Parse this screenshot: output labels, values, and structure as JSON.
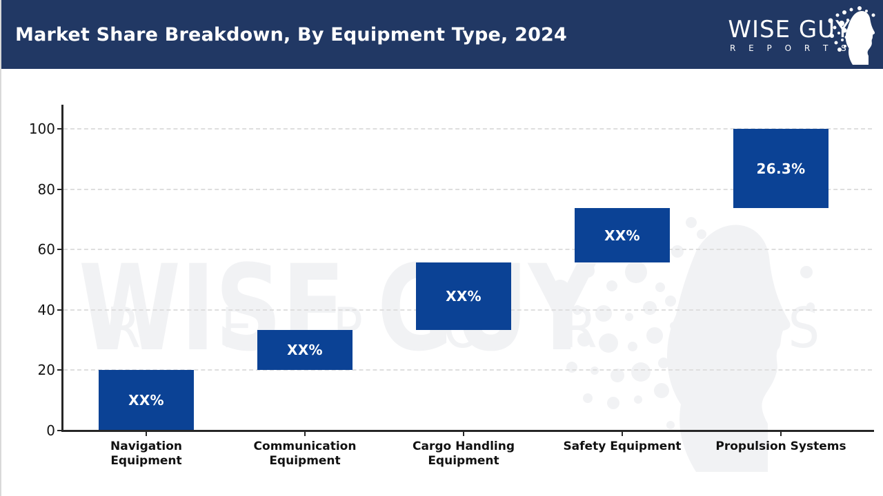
{
  "header": {
    "title": "Market Share Breakdown, By Equipment Type, 2024",
    "logo": {
      "brand": "WISE GUY",
      "sub": "R E P O R T S"
    }
  },
  "watermark": {
    "line1": "WISE GUY",
    "line2": "R E P O R T S"
  },
  "colors": {
    "header_bg": "#213864",
    "bar": "#0b4295",
    "bar_label_text": "#ffffff",
    "gridline": "#dedede",
    "axis": "#262626",
    "watermark": "#f1f2f4"
  },
  "chart_data": {
    "type": "bar",
    "subtype": "waterfall",
    "title": "Market Share Breakdown, By Equipment Type, 2024",
    "categories": [
      "Navigation Equipment",
      "Communication Equipment",
      "Cargo Handling Equipment",
      "Safety Equipment",
      "Propulsion Systems"
    ],
    "segments": [
      [
        0,
        20
      ],
      [
        20,
        33.4
      ],
      [
        33.4,
        55.7
      ],
      [
        55.7,
        73.7
      ],
      [
        73.7,
        100
      ]
    ],
    "values": [
      20,
      13.4,
      22.3,
      18,
      26.3
    ],
    "bar_labels": [
      "XX%",
      "XX%",
      "XX%",
      "XX%",
      "26.3%"
    ],
    "xlabel": "",
    "ylabel": "",
    "ylim": [
      0,
      100
    ],
    "yticks": [
      0,
      20,
      40,
      60,
      80,
      100
    ],
    "grid": "horizontal-dashed",
    "legend": "none",
    "bar_color": "#0b4295"
  }
}
